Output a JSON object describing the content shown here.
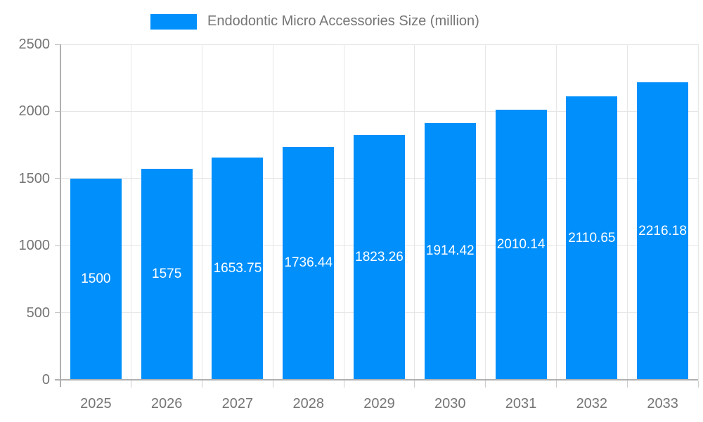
{
  "legend": {
    "label": "Endodontic Micro Accessories Size (million)"
  },
  "chart_data": {
    "type": "bar",
    "title": "Endodontic Micro Accessories Size (million)",
    "categories": [
      "2025",
      "2026",
      "2027",
      "2028",
      "2029",
      "2030",
      "2031",
      "2032",
      "2033"
    ],
    "series": [
      {
        "name": "Endodontic Micro Accessories Size (million)",
        "values": [
          1500,
          1575,
          1653.75,
          1736.44,
          1823.26,
          1914.42,
          2010.14,
          2110.65,
          2216.18
        ],
        "value_labels": [
          "1500",
          "1575",
          "1653.75",
          "1736.44",
          "1823.26",
          "1914.42",
          "2010.14",
          "2110.65",
          "2216.18"
        ],
        "color": "#008ffb"
      }
    ],
    "ylim": [
      0,
      2500
    ],
    "yticks": [
      0,
      500,
      1000,
      1500,
      2000,
      2500
    ],
    "grid": true,
    "legend_position": "top-center",
    "value_label_color": "#ffffff",
    "xlabel": "",
    "ylabel": ""
  },
  "style": {
    "background": "#ffffff",
    "axis_text_color": "#757575",
    "axis_line_color": "#b0b0b0",
    "grid_line_color": "#e6e6e6",
    "tick_color": "#cccccc"
  }
}
